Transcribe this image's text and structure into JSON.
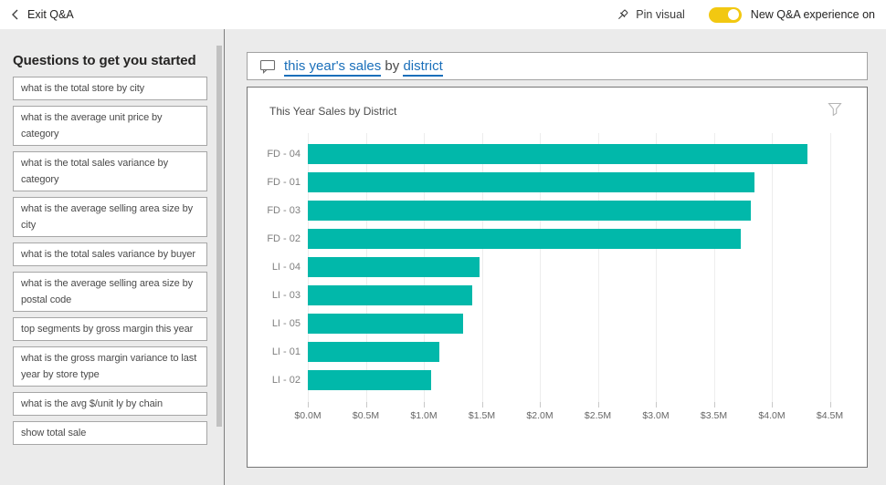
{
  "top_bar": {
    "exit_label": "Exit Q&A",
    "pin_label": "Pin visual",
    "toggle_label": "New Q&A experience on",
    "toggle_on": true,
    "toggle_color": "#F2C811"
  },
  "sidebar": {
    "title": "Questions to get you started",
    "questions": [
      "what is the total store by city",
      "what is the average unit price by category",
      "what is the total sales variance by category",
      "what is the average selling area size by city",
      "what is the total sales variance by buyer",
      "what is the average selling area size by postal code",
      "top segments by gross margin this year",
      "what is the gross margin variance to last year by store type",
      "what is the avg $/unit ly by chain",
      "show total sale"
    ]
  },
  "question_box": {
    "segments": [
      {
        "text": "this year's sales",
        "recognized": true
      },
      {
        "text": " by ",
        "recognized": false
      },
      {
        "text": "district",
        "recognized": true
      }
    ],
    "term_color": "#1a6fba"
  },
  "chart_data": {
    "type": "bar",
    "orientation": "horizontal",
    "title": "This Year Sales by District",
    "categories": [
      "FD - 04",
      "FD - 01",
      "FD - 03",
      "FD - 02",
      "LI - 04",
      "LI - 03",
      "LI - 05",
      "LI - 01",
      "LI - 02"
    ],
    "values": [
      4.31,
      3.85,
      3.82,
      3.73,
      1.48,
      1.42,
      1.34,
      1.13,
      1.06
    ],
    "value_unit": "millions USD",
    "bar_color": "#01B8AA",
    "xlim": [
      0,
      4.5
    ],
    "tick_step": 0.5,
    "tick_labels": [
      "$0.0M",
      "$0.5M",
      "$1.0M",
      "$1.5M",
      "$2.0M",
      "$2.5M",
      "$3.0M",
      "$3.5M",
      "$4.0M",
      "$4.5M"
    ],
    "grid": true,
    "legend": "none"
  }
}
